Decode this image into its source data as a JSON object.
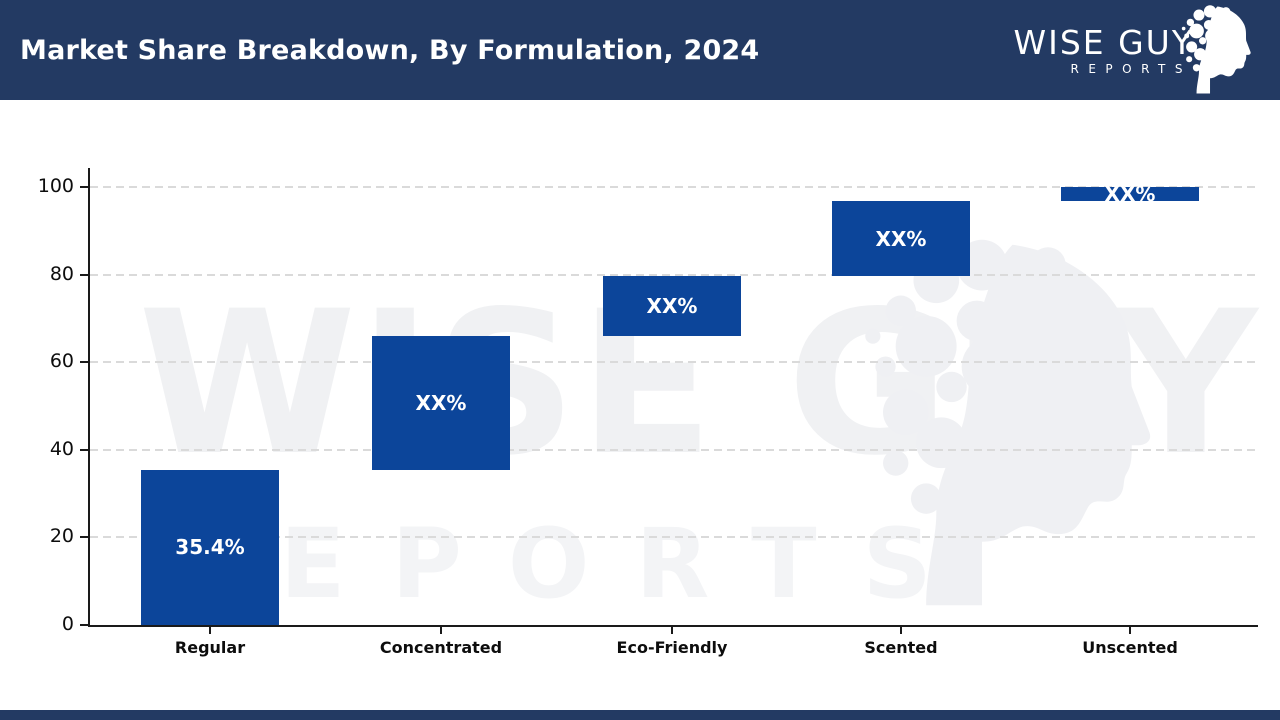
{
  "header": {
    "title": "Market Share Breakdown, By Formulation, 2024",
    "logo": {
      "line1": "WISE GUY",
      "line2": "REPORTS"
    }
  },
  "watermark": {
    "line1": "WISE GUY",
    "line2": "REPORTS"
  },
  "colors": {
    "header_bg": "#233a63",
    "footer_bg": "#233a63",
    "bar": "#0c459a",
    "grid": "#dadada",
    "axis": "#1a1a1a",
    "bar_label": "#ffffff",
    "watermark": "#f0f1f3"
  },
  "chart_data": {
    "type": "bar",
    "subtype": "waterfall",
    "title": "Market Share Breakdown, By Formulation, 2024",
    "xlabel": "",
    "ylabel": "",
    "categories": [
      "Regular",
      "Concentrated",
      "Eco-Friendly",
      "Scented",
      "Unscented"
    ],
    "segments": [
      {
        "category": "Regular",
        "start": 0,
        "end": 35.4,
        "label": "35.4%"
      },
      {
        "category": "Concentrated",
        "start": 35.4,
        "end": 66.0,
        "label": "XX%"
      },
      {
        "category": "Eco-Friendly",
        "start": 66.0,
        "end": 79.7,
        "label": "XX%"
      },
      {
        "category": "Scented",
        "start": 79.7,
        "end": 96.7,
        "label": "XX%"
      },
      {
        "category": "Unscented",
        "start": 96.7,
        "end": 100.0,
        "label": "XX%"
      }
    ],
    "yticks": [
      0,
      20,
      40,
      60,
      80,
      100
    ],
    "ylim": [
      0,
      104
    ],
    "grid": "horizontal-dashed",
    "legend": "none"
  }
}
